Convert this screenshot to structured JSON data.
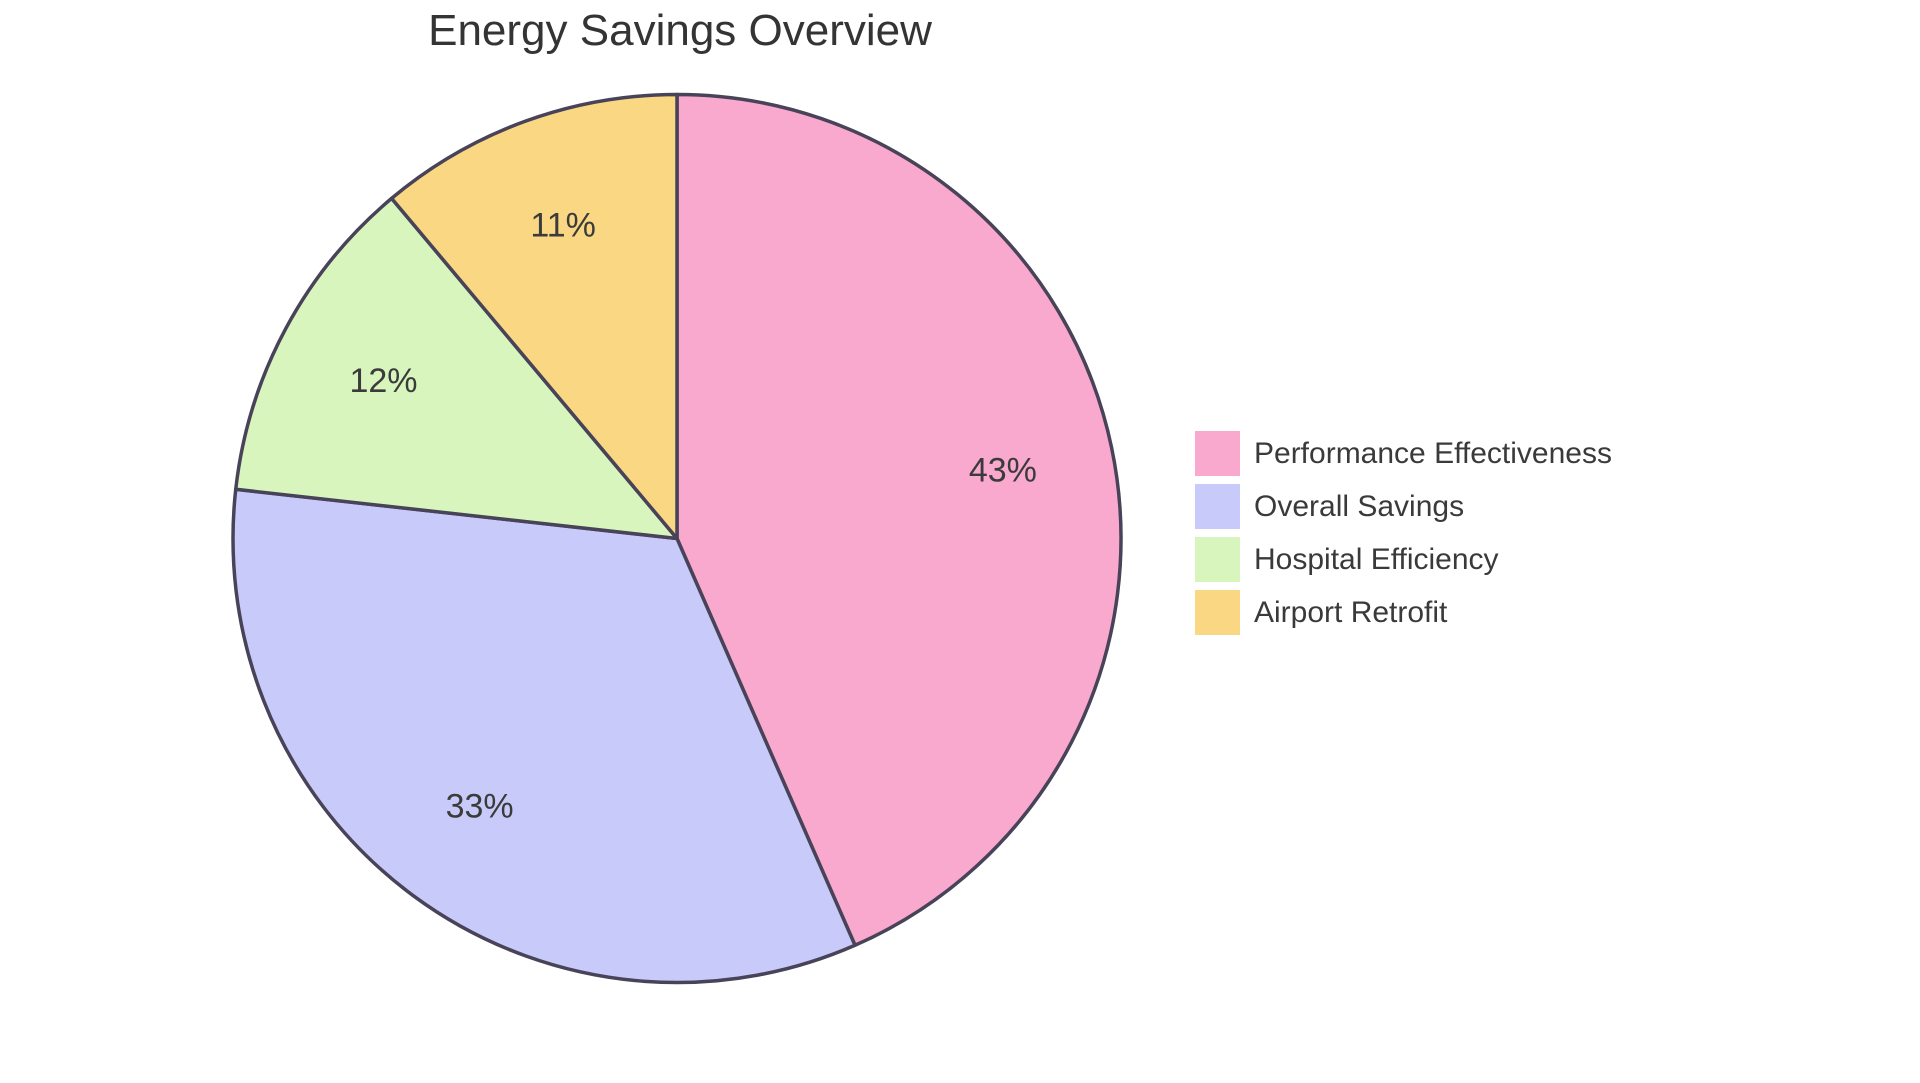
{
  "title": "Energy Savings Overview",
  "chart_data": {
    "type": "pie",
    "title": "Energy Savings Overview",
    "start_angle_deg": 0,
    "direction": "clockwise",
    "label_format": "percent",
    "legend_position": "right",
    "stroke_color": "#484358",
    "label_color": "#3b3b3b",
    "title_color": "#343434",
    "background_color": "#ffffff",
    "slices": [
      {
        "label": "Performance Effectiveness",
        "percent": 43,
        "color": "#F9A8CE",
        "display": "43%"
      },
      {
        "label": "Overall Savings",
        "percent": 33,
        "color": "#C8CBFA",
        "display": "33%"
      },
      {
        "label": "Hospital Efficiency",
        "percent": 12,
        "color": "#D8F5BE",
        "display": "12%"
      },
      {
        "label": "Airport Retrofit",
        "percent": 11,
        "color": "#FAD782",
        "display": "11%"
      }
    ]
  }
}
